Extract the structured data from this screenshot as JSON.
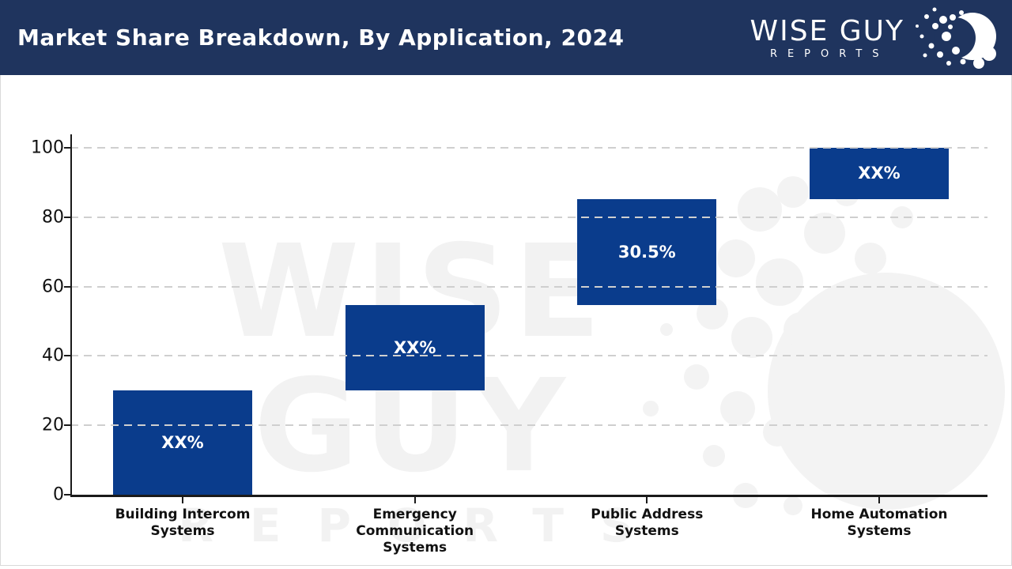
{
  "header": {
    "title": "Market Share Breakdown, By Application, 2024",
    "logo": {
      "line1": "WISE GUY",
      "line2": "REPORTS"
    }
  },
  "watermark": {
    "line1": "WISE GUY",
    "line2": "REPORTS"
  },
  "chart_data": {
    "type": "bar",
    "subtype": "floating-waterfall",
    "title": "Market Share Breakdown, By Application, 2024",
    "categories": [
      "Building Intercom\nSystems",
      "Emergency\nCommunication\nSystems",
      "Public Address\nSystems",
      "Home Automation\nSystems"
    ],
    "bars": [
      {
        "start": 0,
        "end": 30,
        "label": "XX%"
      },
      {
        "start": 30,
        "end": 54.7,
        "label": "XX%"
      },
      {
        "start": 54.7,
        "end": 85.2,
        "label": "30.5%"
      },
      {
        "start": 85.2,
        "end": 100,
        "label": "XX%"
      }
    ],
    "y_ticks": [
      0,
      20,
      40,
      60,
      80,
      100
    ],
    "ylim": [
      0,
      105
    ],
    "xlabel": "",
    "ylabel": "",
    "grid": "horizontal-dashed",
    "legend": "none",
    "bar_color": "#0a3c8c",
    "value_label_color": "#ffffff"
  }
}
